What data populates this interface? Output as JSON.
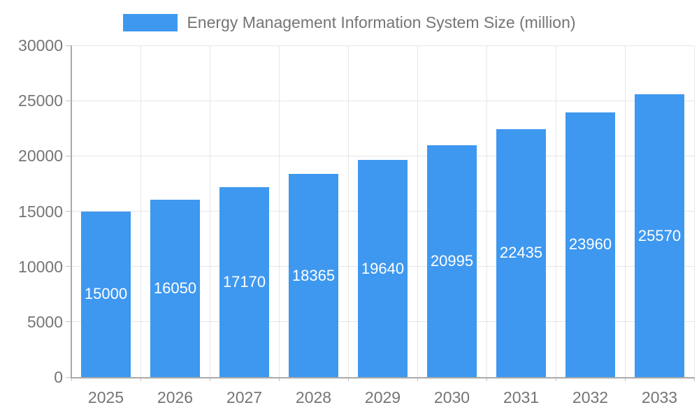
{
  "legend": {
    "label": "Energy Management Information System Size (million)"
  },
  "colors": {
    "bar": "#3E98EF",
    "bar_label_text": "#ffffff",
    "axis_text": "#757575",
    "grid_line": "#e6e6e6",
    "axis_line": "#aaaaaa",
    "tick_mark": "#c4c4c4",
    "background": "#ffffff"
  },
  "chart_data": {
    "type": "bar",
    "title": "Energy Management Information System Size (million)",
    "categories": [
      "2025",
      "2026",
      "2027",
      "2028",
      "2029",
      "2030",
      "2031",
      "2032",
      "2033"
    ],
    "values": [
      15000,
      16050,
      17170,
      18365,
      19640,
      20995,
      22435,
      23960,
      25570
    ],
    "xlabel": "",
    "ylabel": "",
    "ylim": [
      0,
      30000
    ],
    "ytick_step": 5000,
    "ytick_labels": [
      "0",
      "5000",
      "10000",
      "15000",
      "20000",
      "25000",
      "30000"
    ],
    "grid": true,
    "legend_position": "top",
    "value_labels": "inside-center"
  }
}
